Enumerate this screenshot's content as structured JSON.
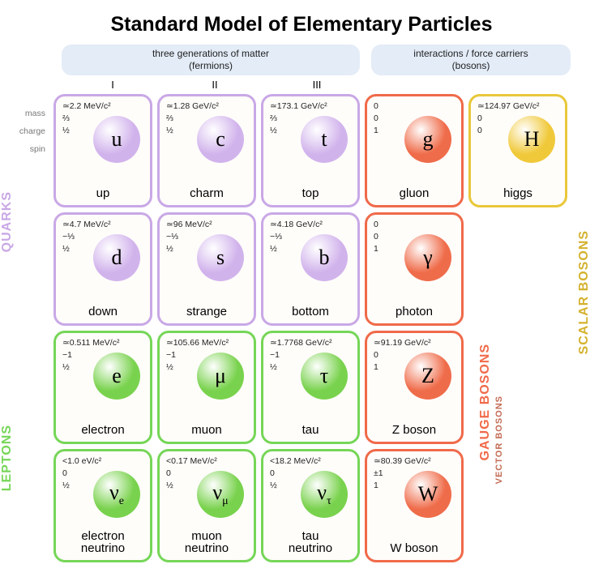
{
  "title": "Standard Model of Elementary Particles",
  "headers": {
    "fermions_line1": "three generations of matter",
    "fermions_line2": "(fermions)",
    "bosons_line1": "interactions / force carriers",
    "bosons_line2": "(bosons)"
  },
  "generations": [
    "I",
    "II",
    "III"
  ],
  "left_labels": {
    "mass": "mass",
    "charge": "charge",
    "spin": "spin"
  },
  "colors": {
    "quark_border": "#c9a8e6",
    "lepton_border": "#76d658",
    "gauge_border": "#f06a4a",
    "scalar_border": "#e8c83a",
    "quark_ball": "#d1b3ec",
    "lepton_ball": "#79d24d",
    "gauge_ball": "#ef6c4a",
    "scalar_ball": "#f0c93a",
    "cell_bg": "#fffdfa",
    "header_bg": "#e3ecf7",
    "quarks_label": "#c9a8e6",
    "leptons_label": "#76d658",
    "gauge_label": "#f06a4a",
    "vector_label": "#c46b55",
    "scalar_label": "#d4b22e"
  },
  "group_labels": {
    "quarks": "QUARKS",
    "leptons": "LEPTONS",
    "gauge": "GAUGE BOSONS",
    "vector": "VECTOR BOSONS",
    "scalar": "SCALAR BOSONS"
  },
  "particles": {
    "up": {
      "sym": "u",
      "name": "up",
      "mass": "≃2.2 MeV/c²",
      "charge": "⅔",
      "spin": "½"
    },
    "charm": {
      "sym": "c",
      "name": "charm",
      "mass": "≃1.28 GeV/c²",
      "charge": "⅔",
      "spin": "½"
    },
    "top": {
      "sym": "t",
      "name": "top",
      "mass": "≃173.1 GeV/c²",
      "charge": "⅔",
      "spin": "½"
    },
    "down": {
      "sym": "d",
      "name": "down",
      "mass": "≃4.7 MeV/c²",
      "charge": "−⅓",
      "spin": "½"
    },
    "strange": {
      "sym": "s",
      "name": "strange",
      "mass": "≃96 MeV/c²",
      "charge": "−⅓",
      "spin": "½"
    },
    "bottom": {
      "sym": "b",
      "name": "bottom",
      "mass": "≃4.18 GeV/c²",
      "charge": "−⅓",
      "spin": "½"
    },
    "electron": {
      "sym": "e",
      "name": "electron",
      "mass": "≃0.511 MeV/c²",
      "charge": "−1",
      "spin": "½"
    },
    "muon": {
      "sym": "μ",
      "name": "muon",
      "mass": "≃105.66 MeV/c²",
      "charge": "−1",
      "spin": "½"
    },
    "tau": {
      "sym": "τ",
      "name": "tau",
      "mass": "≃1.7768 GeV/c²",
      "charge": "−1",
      "spin": "½"
    },
    "enu": {
      "sym": "νe",
      "name": "electron\nneutrino",
      "mass": "<1.0 eV/c²",
      "charge": "0",
      "spin": "½"
    },
    "mnu": {
      "sym": "νμ",
      "name": "muon\nneutrino",
      "mass": "<0.17 MeV/c²",
      "charge": "0",
      "spin": "½"
    },
    "tnu": {
      "sym": "ντ",
      "name": "tau\nneutrino",
      "mass": "<18.2 MeV/c²",
      "charge": "0",
      "spin": "½"
    },
    "gluon": {
      "sym": "g",
      "name": "gluon",
      "mass": "0",
      "charge": "0",
      "spin": "1"
    },
    "photon": {
      "sym": "γ",
      "name": "photon",
      "mass": "0",
      "charge": "0",
      "spin": "1"
    },
    "z": {
      "sym": "Z",
      "name": "Z boson",
      "mass": "≃91.19 GeV/c²",
      "charge": "0",
      "spin": "1"
    },
    "w": {
      "sym": "W",
      "name": "W boson",
      "mass": "≃80.39 GeV/c²",
      "charge": "±1",
      "spin": "1"
    },
    "higgs": {
      "sym": "H",
      "name": "higgs",
      "mass": "≃124.97 GeV/c²",
      "charge": "0",
      "spin": "0"
    }
  },
  "layout": [
    [
      "up",
      "charm",
      "top",
      "gluon",
      "higgs"
    ],
    [
      "down",
      "strange",
      "bottom",
      "photon",
      null
    ],
    [
      "electron",
      "muon",
      "tau",
      "z",
      null
    ],
    [
      "enu",
      "mnu",
      "tnu",
      "w",
      null
    ]
  ],
  "styling_map": {
    "up": "quark",
    "charm": "quark",
    "top": "quark",
    "down": "quark",
    "strange": "quark",
    "bottom": "quark",
    "electron": "lepton",
    "muon": "lepton",
    "tau": "lepton",
    "enu": "lepton",
    "mnu": "lepton",
    "tnu": "lepton",
    "gluon": "gauge",
    "photon": "gauge",
    "z": "gauge",
    "w": "gauge",
    "higgs": "scalar"
  }
}
